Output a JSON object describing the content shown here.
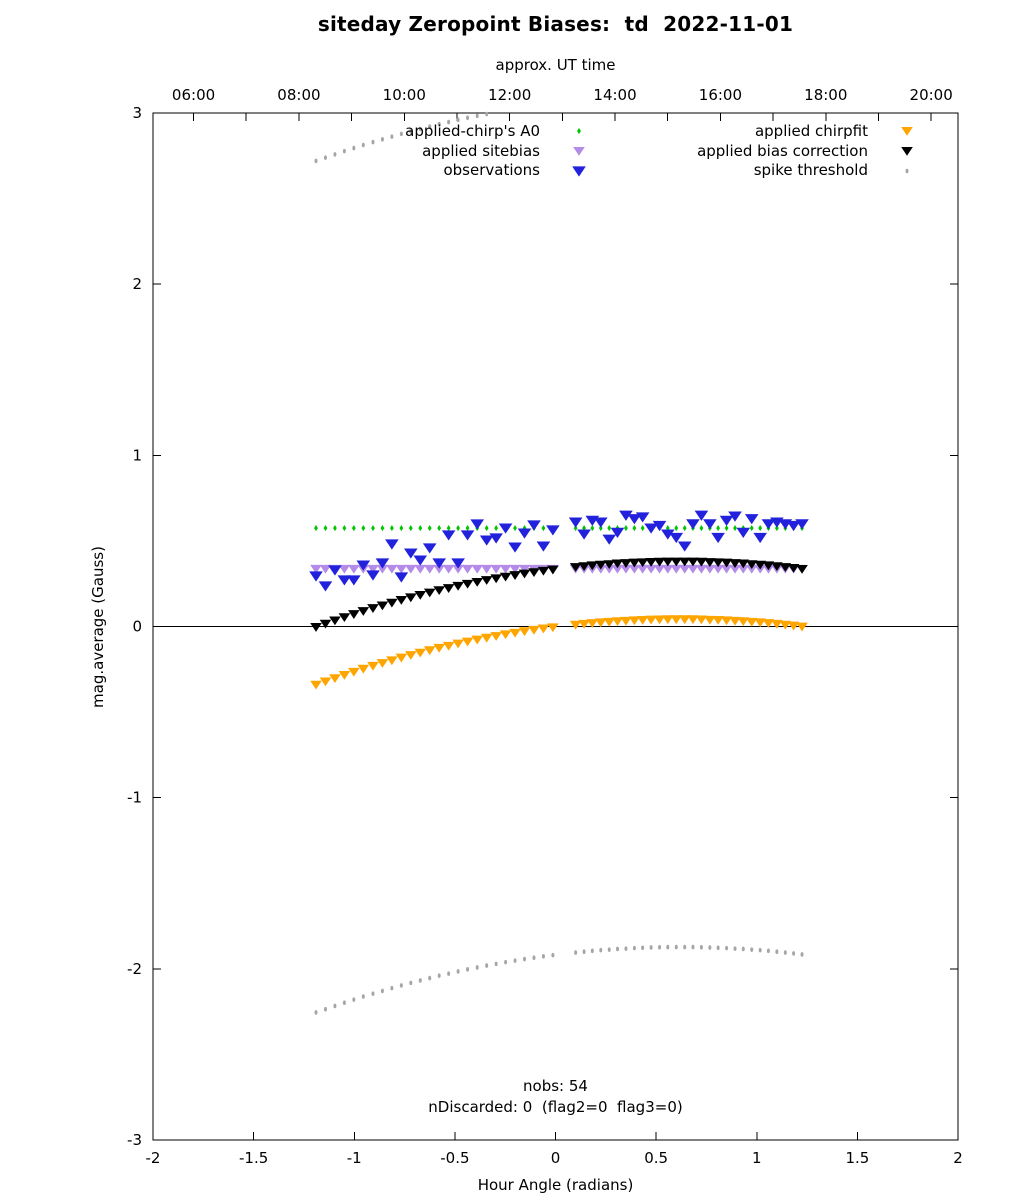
{
  "title": "siteday Zeropoint Biases:  td  2022-11-01",
  "footer": {
    "nobs_line": "nobs: 54",
    "ndiscarded_line": "nDiscarded: 0  (flag2=0  flag3=0)"
  },
  "chart_data": {
    "type": "scatter",
    "title": "siteday Zeropoint Biases:  td  2022-11-01",
    "x2label": "approx. UT time",
    "xlabel": "Hour Angle (radians)",
    "ylabel": "mag.average (Gauss)",
    "xlim": [
      -2,
      2
    ],
    "ylim": [
      -3,
      3
    ],
    "grid": "off",
    "legend_position": "top-inside-two-columns",
    "axes": {
      "x_bottom": {
        "ticks": [
          -2,
          -1.5,
          -1,
          -0.5,
          0,
          0.5,
          1,
          1.5,
          2
        ],
        "tick_labels": [
          "-2",
          "-1.5",
          "-1",
          "-0.5",
          "0",
          "0.5",
          "1",
          "1.5",
          "2"
        ]
      },
      "y_left": {
        "ticks": [
          3,
          2,
          1,
          0,
          -1,
          -2,
          -3
        ],
        "tick_labels": [
          "3",
          "2",
          "1",
          "0",
          "-1",
          "-2",
          "-3"
        ]
      },
      "x_top": {
        "ticks": [
          {
            "hour": 6,
            "label": "06:00"
          },
          {
            "hour": 7,
            "label": ""
          },
          {
            "hour": 8,
            "label": "08:00"
          },
          {
            "hour": 9,
            "label": ""
          },
          {
            "hour": 10,
            "label": "10:00"
          },
          {
            "hour": 11,
            "label": ""
          },
          {
            "hour": 12,
            "label": "12:00"
          },
          {
            "hour": 13,
            "label": ""
          },
          {
            "hour": 14,
            "label": "14:00"
          },
          {
            "hour": 15,
            "label": ""
          },
          {
            "hour": 16,
            "label": "16:00"
          },
          {
            "hour": 17,
            "label": ""
          },
          {
            "hour": 18,
            "label": "18:00"
          },
          {
            "hour": 19,
            "label": ""
          },
          {
            "hour": 20,
            "label": "20:00"
          }
        ]
      }
    },
    "x_grid": {
      "left": [
        -1.19,
        -1.143,
        -1.096,
        -1.049,
        -1.002,
        -0.955,
        -0.907,
        -0.86,
        -0.813,
        -0.766,
        -0.719,
        -0.672,
        -0.625,
        -0.578,
        -0.531,
        -0.484,
        -0.437,
        -0.389,
        -0.342,
        -0.295,
        -0.248,
        -0.201,
        -0.154,
        -0.107,
        -0.06,
        -0.013
      ],
      "right": [
        0.1,
        0.142,
        0.183,
        0.225,
        0.267,
        0.308,
        0.35,
        0.392,
        0.433,
        0.475,
        0.517,
        0.558,
        0.6,
        0.642,
        0.683,
        0.725,
        0.767,
        0.808,
        0.85,
        0.892,
        0.933,
        0.975,
        1.017,
        1.058,
        1.1,
        1.142,
        1.183,
        1.225
      ]
    },
    "series": [
      {
        "id": "a0",
        "label": "applied-chirp's A0",
        "color": "#00c400",
        "marker": "diamond-dot",
        "y_left": [
          0.575,
          0.575,
          0.575,
          0.575,
          0.575,
          0.575,
          0.575,
          0.575,
          0.575,
          0.575,
          0.575,
          0.575,
          0.575,
          0.575,
          0.575,
          0.575,
          0.575,
          0.575,
          0.575,
          0.575,
          0.575,
          0.575,
          0.575,
          0.575,
          0.575,
          0.575
        ],
        "y_right": [
          0.575,
          0.575,
          0.575,
          0.575,
          0.575,
          0.575,
          0.575,
          0.575,
          0.575,
          0.575,
          0.575,
          0.575,
          0.575,
          0.575,
          0.575,
          0.575,
          0.575,
          0.575,
          0.575,
          0.575,
          0.575,
          0.575,
          0.575,
          0.575,
          0.575,
          0.575,
          0.575,
          0.575
        ]
      },
      {
        "id": "sitebias",
        "label": "applied sitebias",
        "color": "#b48be8",
        "marker": "triangle-down",
        "y_left": [
          0.337,
          0.337,
          0.337,
          0.337,
          0.337,
          0.337,
          0.337,
          0.337,
          0.337,
          0.337,
          0.337,
          0.337,
          0.337,
          0.337,
          0.337,
          0.337,
          0.337,
          0.337,
          0.337,
          0.337,
          0.337,
          0.337,
          0.337,
          0.337,
          0.337,
          0.337
        ],
        "y_right": [
          0.337,
          0.337,
          0.337,
          0.337,
          0.337,
          0.337,
          0.337,
          0.337,
          0.337,
          0.337,
          0.337,
          0.337,
          0.337,
          0.337,
          0.337,
          0.337,
          0.337,
          0.337,
          0.337,
          0.337,
          0.337,
          0.337,
          0.337,
          0.337,
          0.337,
          0.337,
          0.337,
          0.337
        ]
      },
      {
        "id": "observations",
        "label": "observations",
        "color": "#2222dd",
        "marker": "triangle-down-large",
        "y_left": [
          0.295,
          0.237,
          0.33,
          0.272,
          0.272,
          0.359,
          0.301,
          0.371,
          0.482,
          0.289,
          0.429,
          0.388,
          0.459,
          0.371,
          0.535,
          0.371,
          0.535,
          0.599,
          0.505,
          0.517,
          0.575,
          0.464,
          0.546,
          0.593,
          0.47,
          0.564
        ],
        "y_right": [
          0.61,
          0.54,
          0.62,
          0.61,
          0.51,
          0.55,
          0.65,
          0.63,
          0.64,
          0.575,
          0.59,
          0.54,
          0.52,
          0.47,
          0.6,
          0.65,
          0.6,
          0.52,
          0.62,
          0.645,
          0.55,
          0.63,
          0.52,
          0.6,
          0.61,
          0.6,
          0.59,
          0.6
        ]
      },
      {
        "id": "chirpfit",
        "label": "applied chirpfit",
        "color": "#ffa500",
        "marker": "triangle-down",
        "y_left": [
          -0.34,
          -0.321,
          -0.302,
          -0.283,
          -0.265,
          -0.247,
          -0.23,
          -0.214,
          -0.198,
          -0.182,
          -0.167,
          -0.153,
          -0.139,
          -0.125,
          -0.113,
          -0.1,
          -0.088,
          -0.077,
          -0.066,
          -0.056,
          -0.046,
          -0.037,
          -0.028,
          -0.02,
          -0.012,
          -0.005
        ],
        "y_right": [
          0.01,
          0.015,
          0.02,
          0.024,
          0.027,
          0.031,
          0.033,
          0.036,
          0.038,
          0.04,
          0.041,
          0.042,
          0.042,
          0.042,
          0.042,
          0.041,
          0.039,
          0.038,
          0.036,
          0.033,
          0.031,
          0.027,
          0.024,
          0.02,
          0.015,
          0.01,
          0.005,
          -0.001
        ]
      },
      {
        "id": "bias_correction",
        "label": "applied bias correction",
        "color": "#000000",
        "marker": "triangle-down",
        "y_left": [
          -0.003,
          0.016,
          0.035,
          0.054,
          0.072,
          0.09,
          0.107,
          0.123,
          0.139,
          0.155,
          0.17,
          0.184,
          0.198,
          0.212,
          0.224,
          0.237,
          0.249,
          0.26,
          0.271,
          0.281,
          0.291,
          0.3,
          0.309,
          0.317,
          0.325,
          0.332
        ],
        "y_right": [
          0.347,
          0.352,
          0.357,
          0.361,
          0.364,
          0.368,
          0.37,
          0.373,
          0.375,
          0.377,
          0.378,
          0.379,
          0.379,
          0.379,
          0.379,
          0.378,
          0.376,
          0.375,
          0.373,
          0.37,
          0.368,
          0.364,
          0.361,
          0.357,
          0.352,
          0.347,
          0.342,
          0.336
        ]
      },
      {
        "id": "spike_threshold",
        "label": "spike threshold",
        "color": "#a6a6a6",
        "marker": "dot",
        "y_left": [
          -2.255,
          -2.236,
          -2.217,
          -2.198,
          -2.18,
          -2.162,
          -2.145,
          -2.129,
          -2.113,
          -2.097,
          -2.082,
          -2.068,
          -2.054,
          -2.04,
          -2.028,
          -2.015,
          -2.003,
          -1.992,
          -1.981,
          -1.971,
          -1.961,
          -1.952,
          -1.943,
          -1.935,
          -1.927,
          -1.92
        ],
        "y_right": [
          -1.905,
          -1.9,
          -1.895,
          -1.891,
          -1.888,
          -1.884,
          -1.882,
          -1.879,
          -1.877,
          -1.875,
          -1.874,
          -1.873,
          -1.873,
          -1.873,
          -1.873,
          -1.874,
          -1.876,
          -1.877,
          -1.879,
          -1.882,
          -1.884,
          -1.888,
          -1.891,
          -1.895,
          -1.9,
          -1.905,
          -1.91,
          -1.916
        ],
        "points_upper": [
          [
            -1.19,
            2.72
          ],
          [
            -1.143,
            2.739
          ],
          [
            -1.096,
            2.758
          ],
          [
            -1.049,
            2.777
          ],
          [
            -1.002,
            2.795
          ],
          [
            -0.955,
            2.813
          ],
          [
            -0.907,
            2.83
          ],
          [
            -0.86,
            2.846
          ],
          [
            -0.813,
            2.862
          ],
          [
            -0.766,
            2.878
          ],
          [
            -0.719,
            2.893
          ],
          [
            -0.672,
            2.907
          ],
          [
            -0.625,
            2.921
          ],
          [
            -0.578,
            2.935
          ],
          [
            -0.531,
            2.947
          ],
          [
            -0.484,
            2.96
          ],
          [
            -0.437,
            2.972
          ],
          [
            -0.389,
            2.983
          ],
          [
            -0.342,
            2.994
          ]
        ]
      }
    ],
    "legend": [
      {
        "label": "applied-chirp's A0",
        "series": "a0",
        "col": 0,
        "row": 0
      },
      {
        "label": "applied sitebias",
        "series": "sitebias",
        "col": 0,
        "row": 1
      },
      {
        "label": "observations",
        "series": "observations",
        "col": 0,
        "row": 2
      },
      {
        "label": "applied chirpfit",
        "series": "chirpfit",
        "col": 1,
        "row": 0
      },
      {
        "label": "applied bias correction",
        "series": "bias_correction",
        "col": 1,
        "row": 1
      },
      {
        "label": "spike threshold",
        "series": "spike_threshold",
        "col": 1,
        "row": 2
      }
    ],
    "annotations": [
      "nobs: 54",
      "nDiscarded: 0  (flag2=0  flag3=0)"
    ]
  }
}
